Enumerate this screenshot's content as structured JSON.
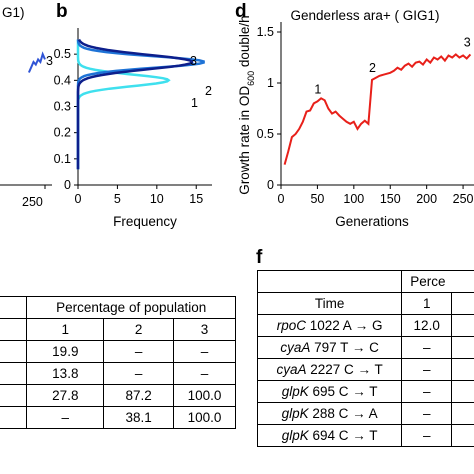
{
  "panel_letters": {
    "b": "b",
    "d": "d",
    "f": "f"
  },
  "chart_data": [
    {
      "id": "a_partial",
      "type": "line",
      "x_ticks": [
        "250"
      ],
      "series": [
        {
          "x": [
            180,
            190,
            200,
            210,
            220,
            230,
            240,
            250
          ],
          "y": [
            0.43,
            0.45,
            0.47,
            0.46,
            0.48,
            0.47,
            0.5,
            0.48
          ],
          "color": "#2f54d6"
        }
      ],
      "annotations": [
        {
          "text": "3"
        }
      ],
      "visible_text": "G1)"
    },
    {
      "id": "b",
      "type": "line",
      "xlabel": "Frequency",
      "xlim": [
        0,
        17
      ],
      "ylim": [
        0,
        0.6
      ],
      "x_ticks": [
        "0",
        "5",
        "10",
        "15"
      ],
      "y_ticks": [
        "0",
        "0.1",
        "0.2",
        "0.3",
        "0.4",
        "0.5"
      ],
      "y_tick_values": [
        0,
        0.1,
        0.2,
        0.3,
        0.4,
        0.5
      ],
      "x_tick_values": [
        0,
        5,
        10,
        15
      ],
      "series": [
        {
          "label": "1",
          "color": "#3fe0ee",
          "y_center": 0.4,
          "sd": 0.022,
          "peak": 11.5
        },
        {
          "label": "2",
          "color": "#1e73d6",
          "y_center": 0.47,
          "sd": 0.022,
          "peak": 16.0
        },
        {
          "label": "3",
          "color": "#0d1f8c",
          "y_center": 0.47,
          "sd": 0.028,
          "peak": 14.5
        }
      ]
    },
    {
      "id": "d",
      "type": "line",
      "title": "Genderless ara+ ( GIG1)",
      "xlabel": "Generations",
      "ylabel": "Growth rate in OD600 double/h",
      "ylabel_parts": [
        "Growth rate in OD",
        "600",
        " double/h"
      ],
      "xlim": [
        0,
        265
      ],
      "ylim": [
        0,
        1.5
      ],
      "x_ticks": [
        "0",
        "50",
        "100",
        "150",
        "200",
        "250"
      ],
      "x_tick_values": [
        0,
        50,
        100,
        150,
        200,
        250
      ],
      "y_ticks": [
        "0",
        "0.5",
        "1",
        "1.5"
      ],
      "y_tick_values": [
        0,
        0.5,
        1,
        1.5
      ],
      "series": [
        {
          "color": "#e8201a",
          "x": [
            5,
            10,
            15,
            20,
            25,
            30,
            35,
            40,
            45,
            50,
            55,
            60,
            65,
            70,
            75,
            80,
            85,
            90,
            95,
            100,
            105,
            110,
            115,
            120,
            125,
            130,
            135,
            140,
            145,
            150,
            155,
            160,
            165,
            170,
            175,
            180,
            185,
            190,
            195,
            200,
            205,
            210,
            215,
            220,
            225,
            230,
            235,
            240,
            245,
            250,
            255,
            260
          ],
          "y": [
            0.2,
            0.33,
            0.47,
            0.5,
            0.55,
            0.62,
            0.72,
            0.73,
            0.8,
            0.82,
            0.85,
            0.83,
            0.75,
            0.7,
            0.72,
            0.68,
            0.65,
            0.62,
            0.6,
            0.62,
            0.55,
            0.6,
            0.63,
            0.6,
            1.03,
            1.05,
            1.07,
            1.08,
            1.09,
            1.1,
            1.12,
            1.15,
            1.13,
            1.17,
            1.19,
            1.16,
            1.2,
            1.21,
            1.18,
            1.23,
            1.2,
            1.25,
            1.23,
            1.26,
            1.22,
            1.27,
            1.25,
            1.28,
            1.25,
            1.27,
            1.24,
            1.28
          ]
        }
      ],
      "annotations": [
        {
          "text": "1",
          "x": 50,
          "y": 0.82
        },
        {
          "text": "2",
          "x": 125,
          "y": 1.03
        },
        {
          "text": "3",
          "x": 255,
          "y": 1.28
        }
      ]
    }
  ],
  "table_e": {
    "header": "Percentage of population",
    "columns": [
      "1",
      "2",
      "3"
    ],
    "rows": [
      [
        "19.9",
        "–",
        "–"
      ],
      [
        "13.8",
        "–",
        "–"
      ],
      [
        "27.8",
        "87.2",
        "100.0"
      ],
      [
        "–",
        "38.1",
        "100.0"
      ]
    ]
  },
  "table_f": {
    "header": "Perce",
    "time_label": "Time",
    "time_col": "1",
    "rows": [
      {
        "gene": "rpoC",
        "mutation": "1022 A → G",
        "value": "12.0"
      },
      {
        "gene": "cyaA",
        "mutation": "797 T → C",
        "value": "–"
      },
      {
        "gene": "cyaA",
        "mutation": "2227 C → T",
        "value": "–"
      },
      {
        "gene": "glpK",
        "mutation": "695 C → T",
        "value": "–"
      },
      {
        "gene": "glpK",
        "mutation": "288 C → A",
        "value": "–"
      },
      {
        "gene": "glpK",
        "mutation": "694 C → T",
        "value": "–"
      }
    ]
  }
}
